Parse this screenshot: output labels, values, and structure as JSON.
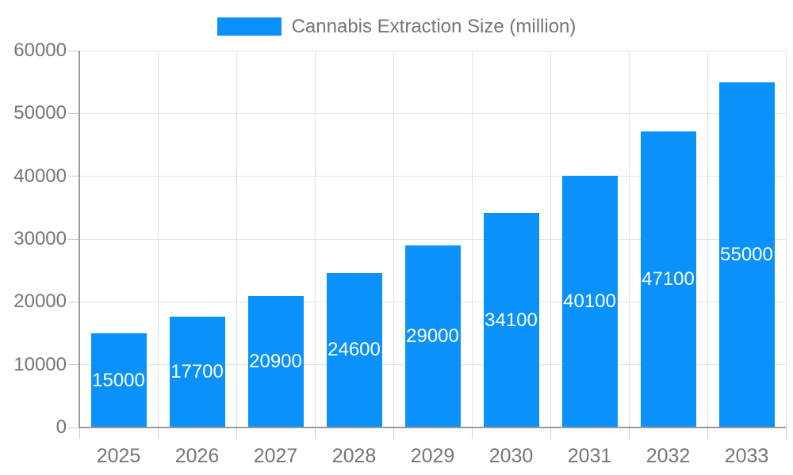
{
  "legend": {
    "label": "Cannabis Extraction Size (million)"
  },
  "colors": {
    "bar": "#0a91fa",
    "grid": "#e3e3e3",
    "axis": "#9a9a9a",
    "tick": "#cccccc",
    "text": "#757575",
    "bar_label": "#ffffff",
    "background": "#ffffff"
  },
  "chart_data": {
    "type": "bar",
    "title": "",
    "categories": [
      "2025",
      "2026",
      "2027",
      "2028",
      "2029",
      "2030",
      "2031",
      "2032",
      "2033"
    ],
    "series": [
      {
        "name": "Cannabis Extraction Size (million)",
        "values": [
          15000,
          17700,
          20900,
          24600,
          29000,
          34100,
          40100,
          47100,
          55000
        ]
      }
    ],
    "bar_value_labels": [
      "15000",
      "17700",
      "20900",
      "24600",
      "29000",
      "34100",
      "40100",
      "47100",
      "55000"
    ],
    "xlabel": "",
    "ylabel": "",
    "ylim": [
      0,
      60000
    ],
    "ytick_step": 10000,
    "ytick_labels": [
      "0",
      "10000",
      "20000",
      "30000",
      "40000",
      "50000",
      "60000"
    ],
    "grid": "horizontal-and-vertical",
    "legend_position": "top-center"
  }
}
